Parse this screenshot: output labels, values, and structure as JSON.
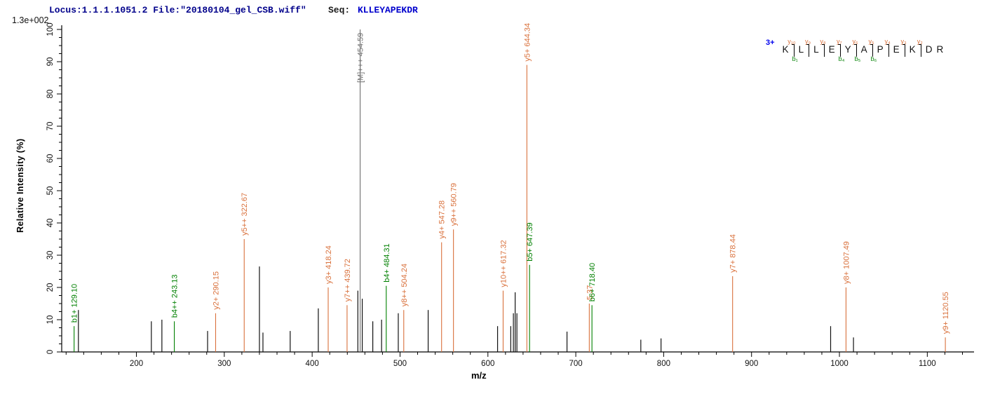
{
  "header": {
    "locus_file": "Locus:1.1.1.1051.2 File:\"20180104_gel_CSB.wiff\"",
    "seq_label": "Seq:",
    "sequence": "KLLEYAPEKDR"
  },
  "plot": {
    "scale_note": "1.3e+002",
    "y_axis_label": "Relative  Intensity (%)",
    "x_axis_label": "m/z"
  },
  "colors": {
    "y_ion": "#d9713c",
    "b_ion": "#008000",
    "precursor": "#707070",
    "peak": "#111111",
    "locus_text": "#00008b",
    "sequence_text": "#0000cd",
    "charge_text": "#0000ee"
  },
  "chart_data": {
    "type": "bar",
    "title": "MS/MS fragment ion spectrum",
    "xlabel": "m/z",
    "ylabel": "Relative Intensity (%)",
    "x_range": [
      115,
      1150
    ],
    "y_range": [
      0,
      100
    ],
    "x_major_ticks": [
      200,
      300,
      400,
      500,
      600,
      700,
      800,
      900,
      1000,
      1100
    ],
    "x_minor_step": 20,
    "y_major_step": 10,
    "y_minor_step": 2.5,
    "grid": false,
    "legend": false,
    "annotated_peaks": [
      {
        "label": "b1+ 129.10",
        "mz": 129.1,
        "intensity": 8,
        "ion": "b_ion"
      },
      {
        "label": "b4++ 243.13",
        "mz": 243.13,
        "intensity": 9.5,
        "ion": "b_ion"
      },
      {
        "label": "y2+ 290.15",
        "mz": 290.15,
        "intensity": 12,
        "ion": "y_ion"
      },
      {
        "label": "y5++ 322.67",
        "mz": 322.67,
        "intensity": 35,
        "ion": "y_ion"
      },
      {
        "label": "y3+ 418.24",
        "mz": 418.24,
        "intensity": 20,
        "ion": "y_ion"
      },
      {
        "label": "y7++ 439.72",
        "mz": 439.72,
        "intensity": 14.5,
        "ion": "y_ion"
      },
      {
        "label": "[M]+++ 454.59",
        "mz": 454.59,
        "intensity": 100,
        "ion": "precursor"
      },
      {
        "label": "b4+ 484.31",
        "mz": 484.31,
        "intensity": 20.5,
        "ion": "b_ion"
      },
      {
        "label": "y8++ 504.24",
        "mz": 504.24,
        "intensity": 13,
        "ion": "y_ion"
      },
      {
        "label": "y4+ 547.28",
        "mz": 547.28,
        "intensity": 34,
        "ion": "y_ion"
      },
      {
        "label": "y9++ 560.79",
        "mz": 560.79,
        "intensity": 38,
        "ion": "y_ion"
      },
      {
        "label": "y10++ 617.32",
        "mz": 617.32,
        "intensity": 19,
        "ion": "y_ion"
      },
      {
        "label": "y5+ 644.34",
        "mz": 644.34,
        "intensity": 89,
        "ion": "y_ion"
      },
      {
        "label": "b5+ 647.39",
        "mz": 647.39,
        "intensity": 27,
        "ion": "b_ion"
      },
      {
        "label": "5.37",
        "mz": 715.37,
        "intensity": 15,
        "ion": "y_ion"
      },
      {
        "label": "b6+ 718.40",
        "mz": 718.4,
        "intensity": 14.5,
        "ion": "b_ion"
      },
      {
        "label": "y7+ 878.44",
        "mz": 878.44,
        "intensity": 23.5,
        "ion": "y_ion"
      },
      {
        "label": "y8+ 1007.49",
        "mz": 1007.49,
        "intensity": 20,
        "ion": "y_ion"
      },
      {
        "label": "y9+ 1120.55",
        "mz": 1120.55,
        "intensity": 4.5,
        "ion": "y_ion"
      }
    ],
    "unassigned_peaks": [
      [
        134,
        13
      ],
      [
        217,
        9.5
      ],
      [
        229,
        10
      ],
      [
        281,
        6.5
      ],
      [
        340,
        26.5
      ],
      [
        344,
        6
      ],
      [
        375,
        6.5
      ],
      [
        407,
        13.5
      ],
      [
        452,
        19
      ],
      [
        457,
        16.5
      ],
      [
        469,
        9.5
      ],
      [
        479,
        10
      ],
      [
        498,
        12
      ],
      [
        532,
        13
      ],
      [
        611,
        8
      ],
      [
        626,
        8
      ],
      [
        629,
        12
      ],
      [
        631,
        18.5
      ],
      [
        633,
        12
      ],
      [
        690,
        6.3
      ],
      [
        774,
        3.8
      ],
      [
        797,
        4.2
      ],
      [
        990,
        8
      ],
      [
        1016,
        4.5
      ]
    ]
  },
  "peptide_diagram": {
    "charge": "3+",
    "residues": [
      "K",
      "L",
      "L",
      "E",
      "Y",
      "A",
      "P",
      "E",
      "K",
      "D",
      "R"
    ],
    "cleavage_sites": [
      {
        "after_residue": 1,
        "y_ion": "y₁₀",
        "b_ion": "b₁"
      },
      {
        "after_residue": 2,
        "y_ion": "y₉",
        "b_ion": null
      },
      {
        "after_residue": 3,
        "y_ion": "y₈",
        "b_ion": null
      },
      {
        "after_residue": 4,
        "y_ion": "y₇",
        "b_ion": "b₄"
      },
      {
        "after_residue": 5,
        "y_ion": "y₆",
        "b_ion": "b₅"
      },
      {
        "after_residue": 6,
        "y_ion": "y₅",
        "b_ion": "b₆"
      },
      {
        "after_residue": 7,
        "y_ion": "y₄",
        "b_ion": null
      },
      {
        "after_residue": 8,
        "y_ion": "y₃",
        "b_ion": null
      },
      {
        "after_residue": 9,
        "y_ion": "y₂",
        "b_ion": null
      }
    ]
  }
}
